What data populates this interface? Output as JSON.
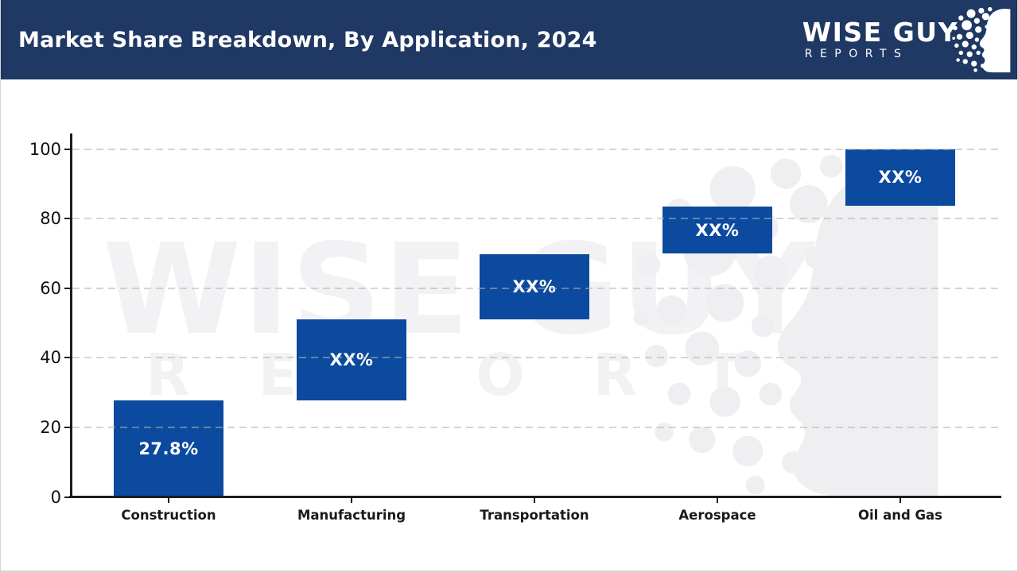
{
  "header": {
    "title": "Market Share Breakdown, By Application, 2024",
    "logo": {
      "line1": "WISE GUY",
      "line2": "REPORTS"
    }
  },
  "watermark": {
    "line1": "WISE GUY",
    "line2": "REPORTS"
  },
  "colors": {
    "header_bg": "#1f3864",
    "bar": "#0b4a9e",
    "bar_label": "#ffffff",
    "axis": "#1c1c1c",
    "gridline": "#d9d9d9",
    "watermark": "#f2f2f4"
  },
  "chart_data": {
    "type": "bar",
    "subtype": "waterfall",
    "title": "Market Share Breakdown, By Application, 2024",
    "categories": [
      "Construction",
      "Manufacturing",
      "Transportation",
      "Aerospace",
      "Oil and Gas"
    ],
    "segments": [
      {
        "category": "Construction",
        "start": 0,
        "end": 27.8,
        "label": "27.8%"
      },
      {
        "category": "Manufacturing",
        "start": 27.8,
        "end": 51.0,
        "label": "XX%"
      },
      {
        "category": "Transportation",
        "start": 51.0,
        "end": 69.7,
        "label": "XX%"
      },
      {
        "category": "Aerospace",
        "start": 69.9,
        "end": 83.4,
        "label": "XX%"
      },
      {
        "category": "Oil and Gas",
        "start": 83.6,
        "end": 100.0,
        "label": "XX%"
      }
    ],
    "ylim": [
      0,
      104
    ],
    "yticks": [
      0,
      20,
      40,
      60,
      80,
      100
    ],
    "xlabel": "",
    "ylabel": "",
    "grid": "dashed-horizontal",
    "legend": "none"
  }
}
